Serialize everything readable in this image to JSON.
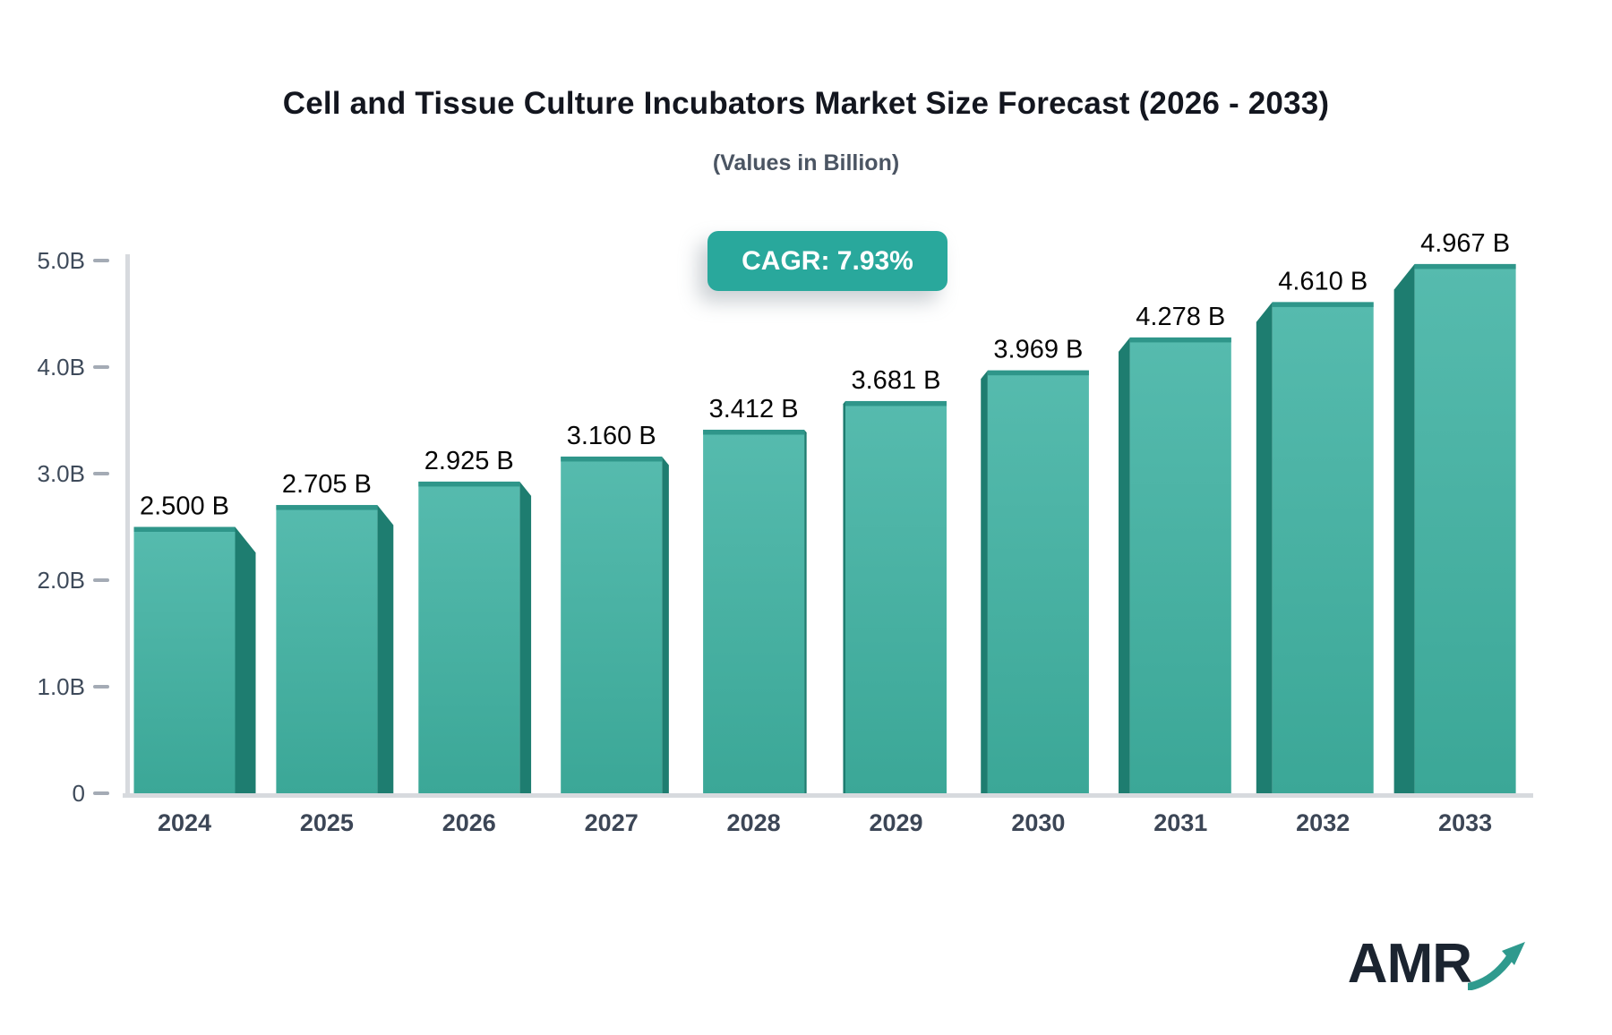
{
  "header": {
    "title": "Cell and Tissue Culture Incubators Market Size Forecast (2026 - 2033)",
    "subtitle": "(Values in Billion)"
  },
  "badge": {
    "label": "CAGR: 7.93%"
  },
  "logo": {
    "text": "AMR"
  },
  "chart_data": {
    "type": "bar",
    "title": "Cell and Tissue Culture Incubators Market Size Forecast (2026 - 2033)",
    "subtitle": "(Values in Billion)",
    "cagr_percent": 7.93,
    "categories": [
      "2024",
      "2025",
      "2026",
      "2027",
      "2028",
      "2029",
      "2030",
      "2031",
      "2032",
      "2033"
    ],
    "values": [
      2.5,
      2.705,
      2.925,
      3.16,
      3.412,
      3.681,
      3.969,
      4.278,
      4.61,
      4.967
    ],
    "value_labels": [
      "2.500 B",
      "2.705 B",
      "2.925 B",
      "3.160 B",
      "3.412 B",
      "3.681 B",
      "3.969 B",
      "4.278 B",
      "4.610 B",
      "4.967 B"
    ],
    "xlabel": "",
    "ylabel": "",
    "ylim": [
      0,
      5
    ],
    "ytick_values": [
      0,
      1,
      2,
      3,
      4,
      5
    ],
    "ytick_labels": [
      "0",
      "1.0B",
      "2.0B",
      "3.0B",
      "4.0B",
      "5.0B"
    ],
    "grid": false,
    "legend": "none",
    "colors": {
      "bar_face_top": "#56bbae",
      "bar_face_bottom": "#3ba797",
      "bar_side": "#1e7d70",
      "bar_top_strip": "#2f968a",
      "axis_line": "#d7dade",
      "tick_dash": "#a4abb5",
      "ytick_text": "#3e4a5a",
      "xtick_text": "#3c4656",
      "value_text": "#060606",
      "accent": "#29a89c"
    }
  }
}
